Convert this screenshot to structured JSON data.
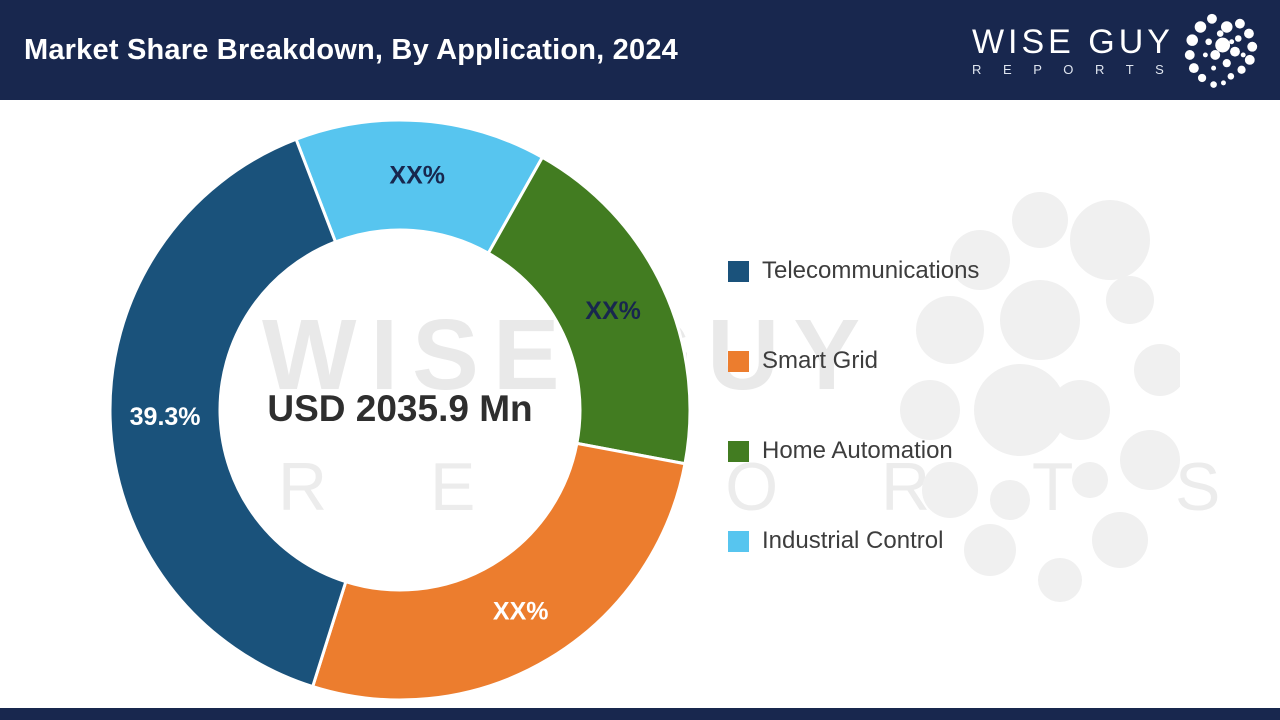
{
  "theme": {
    "header_bg": "#18274e",
    "footer_bg": "#18274e",
    "page_bg": "#ffffff",
    "title_color": "#ffffff",
    "center_label_color": "#2e2e2e",
    "legend_text_color": "#3d3d3d",
    "watermark_color": "#e9e9e9"
  },
  "header": {
    "title": "Market Share Breakdown, By Application, 2024",
    "logo": {
      "line1": "WISE GUY",
      "line2": "R E P O R T S"
    }
  },
  "chart_data": {
    "type": "pie",
    "variant": "donut",
    "title": "Market Share Breakdown, By Application, 2024",
    "center_label": "USD 2035.9 Mn",
    "legend_position": "right",
    "start_angle_deg": -21,
    "segments": [
      {
        "name": "Industrial Control",
        "value": 14.0,
        "display_label": "XX%",
        "color": "#57c5ef",
        "label_color": "#18274e"
      },
      {
        "name": "Home Automation",
        "value": 19.8,
        "display_label": "XX%",
        "color": "#427c21",
        "label_color": "#18274e"
      },
      {
        "name": "Smart Grid",
        "value": 26.9,
        "display_label": "XX%",
        "color": "#ec7d2e",
        "label_color": "#ffffff"
      },
      {
        "name": "Telecommunications",
        "value": 39.3,
        "display_label": "39.3%",
        "color": "#1a527b",
        "label_color": "#ffffff"
      }
    ]
  },
  "legend": {
    "items": [
      {
        "label": "Telecommunications",
        "color": "#1a527b"
      },
      {
        "label": "Smart Grid",
        "color": "#ec7d2e"
      },
      {
        "label": "Home Automation",
        "color": "#427c21"
      },
      {
        "label": "Industrial Control",
        "color": "#57c5ef"
      }
    ]
  },
  "watermark": {
    "line1": "WISE GUY",
    "line2": "R E P O R T S"
  }
}
